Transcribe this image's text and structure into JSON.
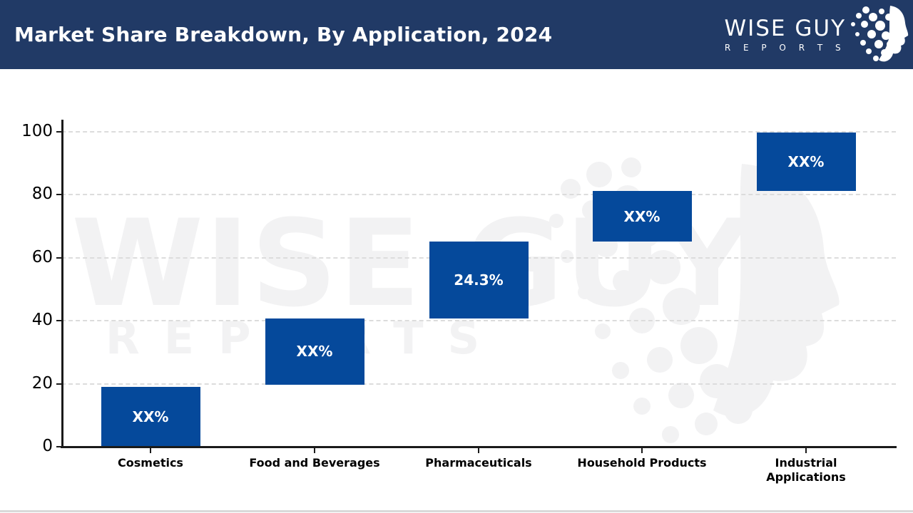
{
  "header": {
    "title": "Market Share Breakdown, By Application, 2024",
    "logo": {
      "name": "WISE GUY",
      "subtitle": "R E P O R T S"
    }
  },
  "watermark": {
    "line1": "WISE GUY",
    "line2": "REPORTS"
  },
  "chart_data": {
    "type": "bar",
    "subtype": "floating-waterfall-bars",
    "title": "Market Share Breakdown, By Application, 2024",
    "categories": [
      "Cosmetics",
      "Food and Beverages",
      "Pharmaceuticals",
      "Household Products",
      "Industrial Applications"
    ],
    "bars": [
      {
        "category": "Cosmetics",
        "start": 0,
        "end": 19.0,
        "label": "XX%"
      },
      {
        "category": "Food and Beverages",
        "start": 19.7,
        "end": 40.8,
        "label": "XX%"
      },
      {
        "category": "Pharmaceuticals",
        "start": 40.8,
        "end": 65.1,
        "label": "24.3%"
      },
      {
        "category": "Household Products",
        "start": 65.1,
        "end": 81.2,
        "label": "XX%"
      },
      {
        "category": "Industrial Applications",
        "start": 81.2,
        "end": 99.8,
        "label": "XX%"
      }
    ],
    "yticks": [
      0,
      20,
      40,
      60,
      80,
      100
    ],
    "ylim": [
      0,
      104
    ],
    "xlabel": "",
    "ylabel": "",
    "grid": "horizontal-dashed",
    "legend": "none",
    "bar_color": "#05499b",
    "bar_label_color": "#ffffff",
    "axis_color": "#1a1a1a",
    "gridline_color": "#dcdcdc",
    "header_color": "#213a66"
  }
}
